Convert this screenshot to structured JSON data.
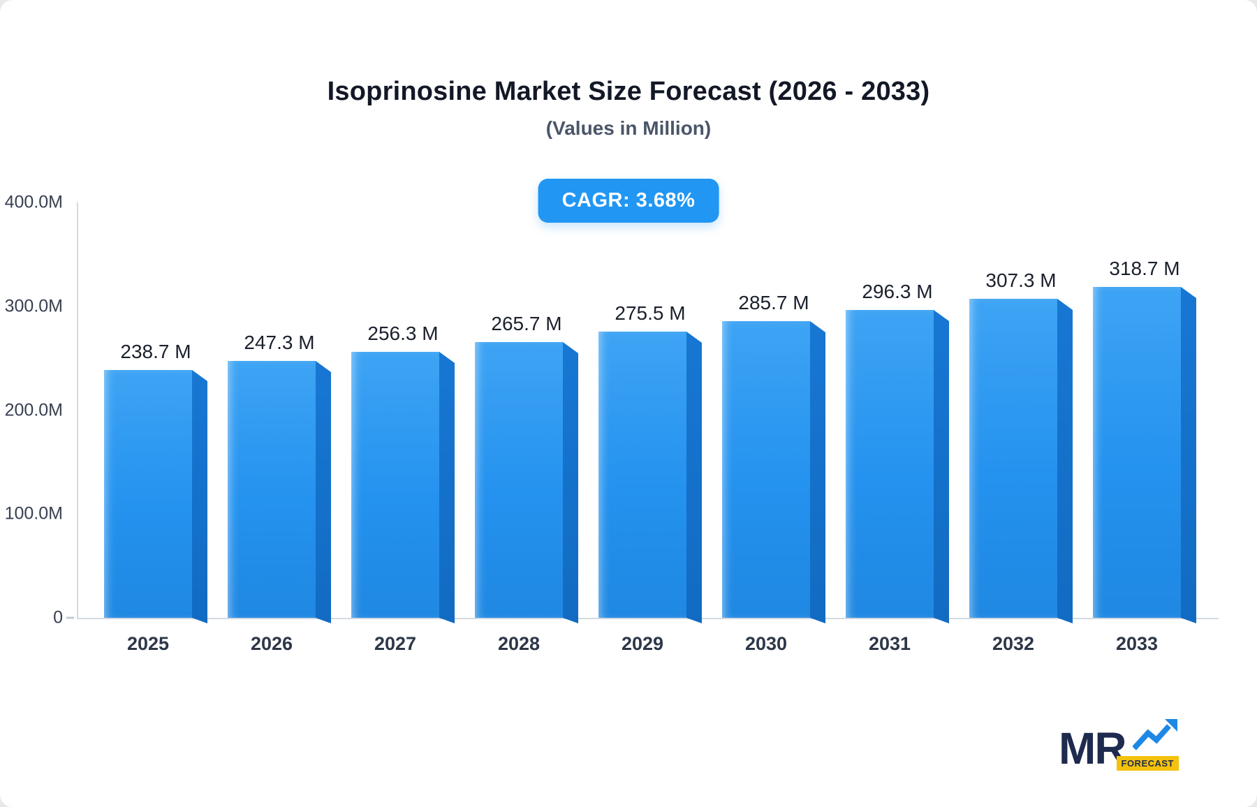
{
  "header": {
    "title": "Isoprinosine Market Size Forecast (2026 - 2033)",
    "subtitle": "(Values in Million)"
  },
  "badge": {
    "label": "CAGR: 3.68%",
    "color": "#2196f3"
  },
  "chart_data": {
    "type": "bar",
    "title": "Isoprinosine Market Size Forecast (2026 - 2033)",
    "subtitle": "(Values in Million)",
    "categories": [
      "2025",
      "2026",
      "2027",
      "2028",
      "2029",
      "2030",
      "2031",
      "2032",
      "2033"
    ],
    "values": [
      238.7,
      247.3,
      256.3,
      265.7,
      275.5,
      285.7,
      296.3,
      307.3,
      318.7
    ],
    "value_labels": [
      "238.7 M",
      "247.3 M",
      "256.3 M",
      "265.7 M",
      "275.5 M",
      "285.7 M",
      "296.3 M",
      "307.3 M",
      "318.7 M"
    ],
    "xlabel": "",
    "ylabel": "",
    "ylim": [
      0,
      400
    ],
    "yticks": [
      {
        "value": 0,
        "label": "0"
      },
      {
        "value": 100,
        "label": "100.0M"
      },
      {
        "value": 200,
        "label": "200.0M"
      },
      {
        "value": 300,
        "label": "300.0M"
      },
      {
        "value": 400,
        "label": "400.0M"
      }
    ],
    "grid": false,
    "legend": false,
    "bar_color": "#2196f3",
    "bar_side_color": "#1368bd"
  },
  "logo": {
    "text": "MR",
    "sub": "FORECAST"
  }
}
